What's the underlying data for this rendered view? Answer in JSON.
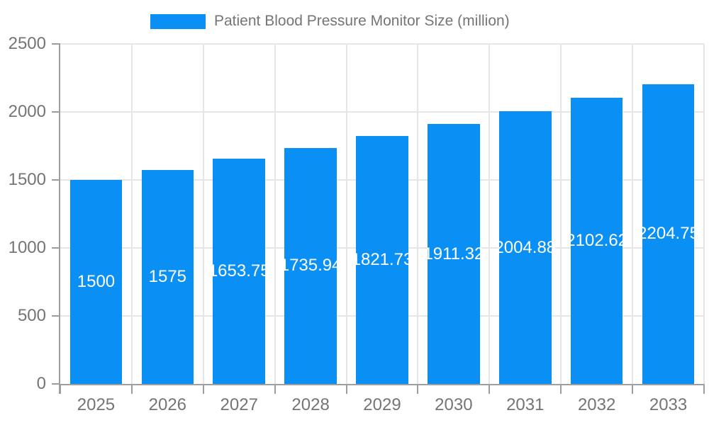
{
  "legend": {
    "label": "Patient Blood Pressure Monitor Size (million)"
  },
  "chart_data": {
    "type": "bar",
    "title": "Patient Blood Pressure Monitor Size (million)",
    "categories": [
      "2025",
      "2026",
      "2027",
      "2028",
      "2029",
      "2030",
      "2031",
      "2032",
      "2033"
    ],
    "values": [
      1500,
      1575,
      1653.75,
      1735.94,
      1821.73,
      1911.32,
      2004.88,
      2102.62,
      2204.75
    ],
    "value_labels": [
      "1500",
      "1575",
      "1653.75",
      "1735.94",
      "1821.73",
      "1911.32",
      "2004.88",
      "2102.62",
      "2204.75"
    ],
    "xlabel": "",
    "ylabel": "",
    "ylim": [
      0,
      2500
    ],
    "yticks": [
      0,
      500,
      1000,
      1500,
      2000,
      2500
    ],
    "grid": true,
    "legend_position": "top-center",
    "bar_color": "#0a90f5",
    "colors": {
      "grid": "#e6e6e6",
      "axis": "#9e9e9e",
      "tick_text": "#757575",
      "value_label": "#ffffff",
      "background": "#ffffff"
    }
  }
}
